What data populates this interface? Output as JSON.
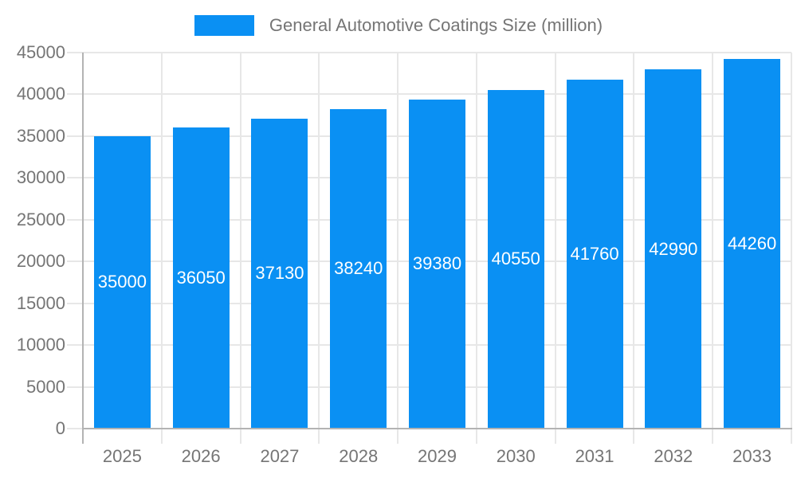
{
  "legend": {
    "label": "General Automotive Coatings Size (million)"
  },
  "colors": {
    "bar": "#0a90f3",
    "bar_label_text": "#ffffff",
    "axis_text": "#757575",
    "legend_text": "#757575",
    "gridline": "#e7e7e7",
    "axis_line": "#b3b3b3",
    "background": "#ffffff"
  },
  "chart_data": {
    "type": "bar",
    "title": "General Automotive Coatings Size (million)",
    "categories": [
      "2025",
      "2026",
      "2027",
      "2028",
      "2029",
      "2030",
      "2031",
      "2032",
      "2033"
    ],
    "series": [
      {
        "name": "General Automotive Coatings Size (million)",
        "values": [
          35000,
          36050,
          37130,
          38240,
          39380,
          40550,
          41760,
          42990,
          44260
        ]
      }
    ],
    "data_labels": [
      "35000",
      "36050",
      "37130",
      "38240",
      "39380",
      "40550",
      "41760",
      "42990",
      "44260"
    ],
    "xlabel": "",
    "ylabel": "",
    "ylim": [
      0,
      45000
    ],
    "yticks": [
      0,
      5000,
      10000,
      15000,
      20000,
      25000,
      30000,
      35000,
      40000,
      45000
    ],
    "grid": true,
    "legend_position": "top",
    "data_labels_shown": true,
    "data_label_position": "center-of-bar"
  }
}
